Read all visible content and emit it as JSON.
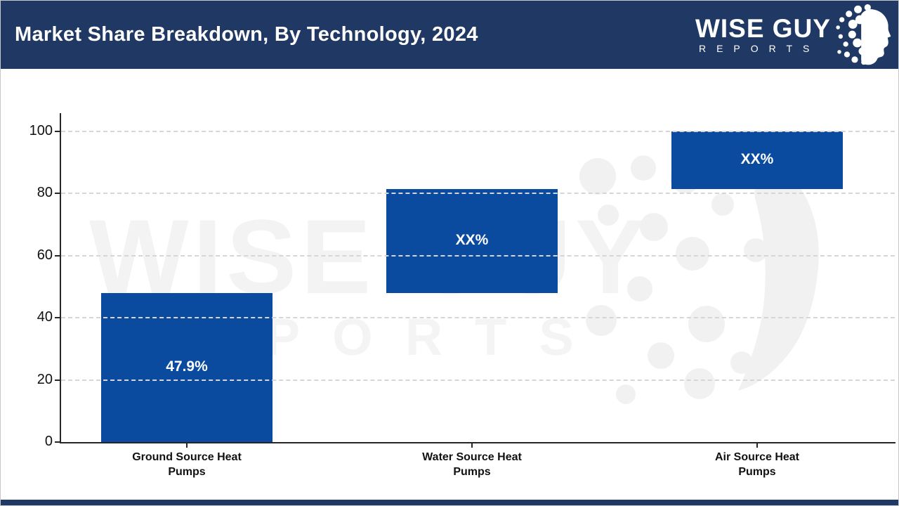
{
  "header": {
    "title": "Market Share Breakdown, By Technology, 2024",
    "bg_color": "#1f3864",
    "logo": {
      "line1": "WISE GUY",
      "line2": "REPORTS"
    }
  },
  "watermark": {
    "line1": "WISE GUY",
    "line2": "REPORTS",
    "color": "#f3f3f3"
  },
  "chart_data": {
    "type": "bar",
    "subtype": "floating-segment-waterfall",
    "title": "Market Share Breakdown, By Technology, 2024",
    "categories": [
      {
        "lines": [
          "Ground Source Heat",
          "Pumps"
        ]
      },
      {
        "lines": [
          "Water Source Heat",
          "Pumps"
        ]
      },
      {
        "lines": [
          "Air Source Heat",
          "Pumps"
        ]
      }
    ],
    "segments": [
      {
        "category": "Ground Source Heat Pumps",
        "start": 0,
        "end": 47.9,
        "label": "47.9%"
      },
      {
        "category": "Water Source Heat Pumps",
        "start": 47.9,
        "end": 81.4,
        "label": "XX%"
      },
      {
        "category": "Air Source Heat Pumps",
        "start": 81.4,
        "end": 100,
        "label": "XX%"
      }
    ],
    "ylim": [
      0,
      100
    ],
    "yticks": [
      0,
      20,
      40,
      60,
      80,
      100
    ],
    "grid": {
      "horizontal": true,
      "style": "dashed",
      "color": "#d6d6d6"
    },
    "legend": "none",
    "bar_color": "#0a4b9f",
    "bar_label_color": "#ffffff",
    "axis_color": "#262626",
    "tick_label_color": "#111111"
  }
}
